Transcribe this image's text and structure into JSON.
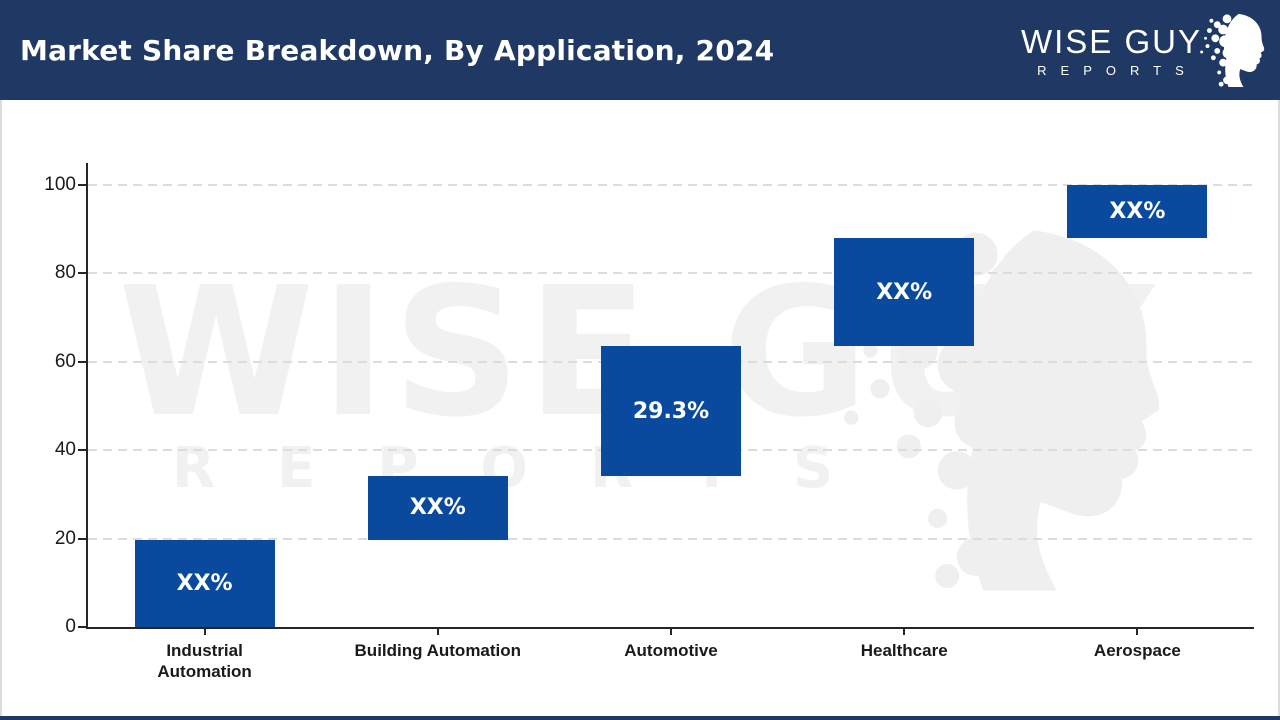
{
  "header": {
    "title": "Market Share Breakdown, By Application, 2024",
    "brand": {
      "name": "WISE GUY",
      "subname": "REPORTS",
      "face_icon": "dotted-face-profile"
    }
  },
  "watermark": {
    "line1": "WISE GUY",
    "line2": "REPORTS",
    "face_icon": "dotted-face-profile"
  },
  "colors": {
    "header_bg": "#203864",
    "bar": "#0a4a9e",
    "axis": "#262626",
    "grid": "#dcdcdc",
    "text": "#1a1a1a",
    "bar_label": "#ffffff",
    "watermark": "#f1f1f2"
  },
  "chart_data": {
    "type": "bar",
    "subtype": "waterfall",
    "title": "Market Share Breakdown, By Application, 2024",
    "categories": [
      "Industrial Automation",
      "Building Automation",
      "Automotive",
      "Healthcare",
      "Aerospace"
    ],
    "segments": [
      {
        "start": 0,
        "end": 19.7,
        "label": "XX%"
      },
      {
        "start": 19.7,
        "end": 34.2,
        "label": "XX%"
      },
      {
        "start": 34.2,
        "end": 63.5,
        "label": "29.3%"
      },
      {
        "start": 63.5,
        "end": 88,
        "label": "XX%"
      },
      {
        "start": 88,
        "end": 100,
        "label": "XX%"
      }
    ],
    "yticks": [
      0,
      20,
      40,
      60,
      80,
      100
    ],
    "ylim": [
      0,
      105
    ],
    "xlabel": "",
    "ylabel": "",
    "grid": "horizontal-dashed",
    "legend": "none",
    "bar_color": "#0a4a9e"
  }
}
